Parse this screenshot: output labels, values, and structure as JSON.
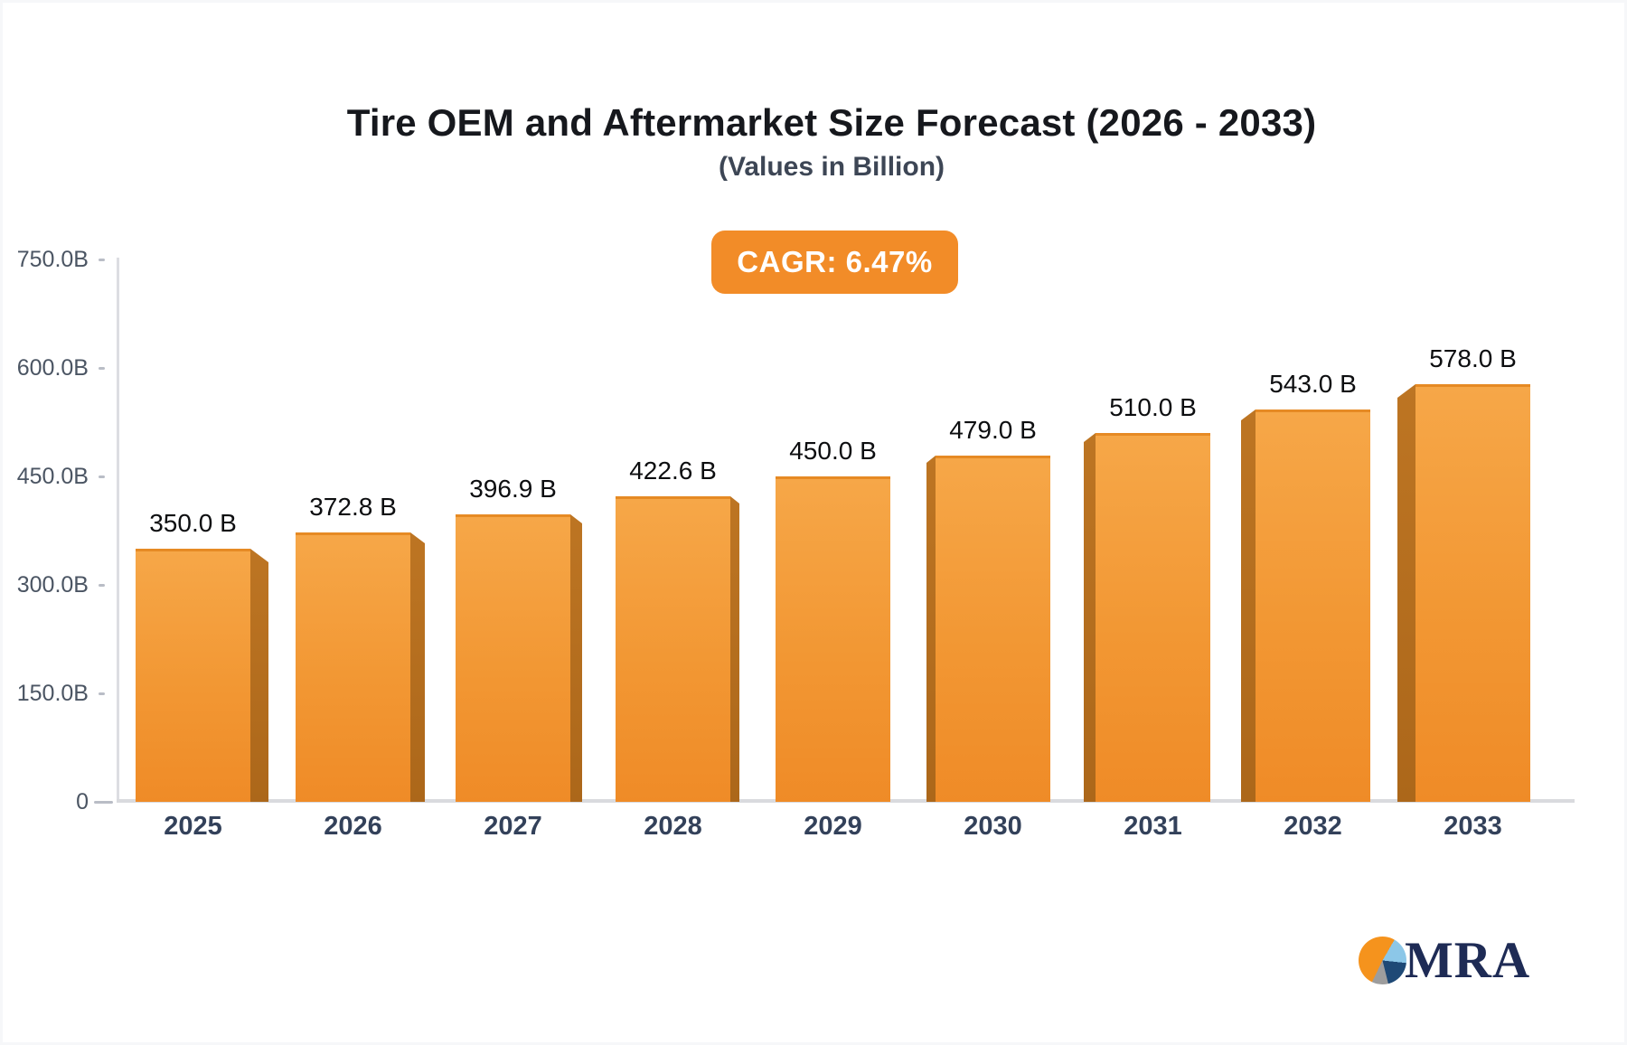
{
  "header": {
    "title": "Tire OEM and Aftermarket Size Forecast (2026 - 2033)",
    "subtitle": "(Values in Billion)"
  },
  "cagr_badge": {
    "label": "CAGR: 6.47%",
    "color": "#f28c28"
  },
  "chart_data": {
    "type": "bar",
    "title": "Tire OEM and Aftermarket Size Forecast (2026 - 2033)",
    "subtitle": "(Values in Billion)",
    "unit": "Billion",
    "cagr_percent": 6.47,
    "categories": [
      "2025",
      "2026",
      "2027",
      "2028",
      "2029",
      "2030",
      "2031",
      "2032",
      "2033"
    ],
    "values": [
      350.0,
      372.8,
      396.9,
      422.6,
      450.0,
      479.0,
      510.0,
      543.0,
      578.0
    ],
    "value_labels": [
      "350.0 B",
      "372.8 B",
      "396.9 B",
      "422.6 B",
      "450.0 B",
      "479.0 B",
      "510.0 B",
      "543.0 B",
      "578.0 B"
    ],
    "xlabel": "",
    "ylabel": "",
    "ylim": [
      0,
      750
    ],
    "grid": false,
    "legend": false,
    "y_axis_ticks": [
      {
        "label": "0",
        "value": 0
      },
      {
        "label": "150.0B",
        "value": 150
      },
      {
        "label": "300.0B",
        "value": 300
      },
      {
        "label": "450.0B",
        "value": 450
      },
      {
        "label": "600.0B",
        "value": 600
      },
      {
        "label": "750.0B",
        "value": 750
      }
    ],
    "bar_color_top": "#f6a748",
    "bar_color_bottom": "#ef8b27",
    "bar_side_color": "#b16d1d",
    "axis_color": "#dcdde2",
    "label_color": "#0d0e10"
  },
  "logo": {
    "text": "MRA",
    "pie_colors": [
      "#f5931d",
      "#8cc7e8",
      "#1e4976",
      "#9d9d9d"
    ],
    "text_color": "#1e2b55"
  }
}
